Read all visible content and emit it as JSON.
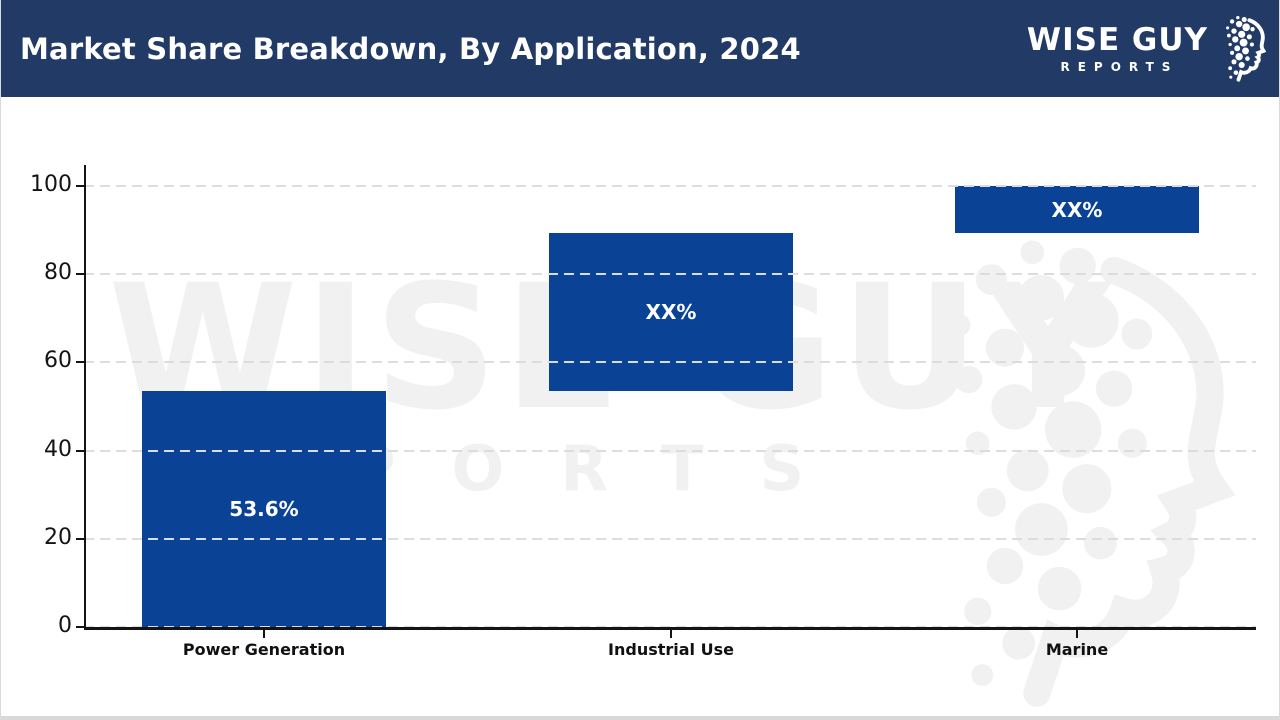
{
  "header": {
    "title": "Market Share Breakdown, By Application, 2024",
    "bg_color": "#213a66",
    "logo": {
      "line1": "WISE GUY",
      "line2": "REPORTS",
      "head_icon": "dotted-face-profile"
    }
  },
  "watermark": {
    "line1": "WISE GUY",
    "line2": "REPORTS",
    "head_icon": "dotted-face-profile",
    "color": "#f1f1f1"
  },
  "chart_data": {
    "type": "bar",
    "subtype": "waterfall-floating-bars",
    "title": "Market Share Breakdown, By Application, 2024",
    "categories": [
      "Power Generation",
      "Industrial Use",
      "Marine"
    ],
    "series": [
      {
        "name": "Power Generation",
        "start": 0,
        "end": 53.6,
        "label": "53.6%"
      },
      {
        "name": "Industrial Use",
        "start": 53.6,
        "end": 89.3,
        "label": "XX%"
      },
      {
        "name": "Marine",
        "start": 89.3,
        "end": 100,
        "label": "XX%"
      }
    ],
    "xlabel": "",
    "ylabel": "",
    "ylim": [
      0,
      105
    ],
    "yticks": [
      0,
      20,
      40,
      60,
      80,
      100
    ],
    "grid": "horizontal-dashed",
    "legend": "none",
    "bar_color": "#0a4296",
    "bar_label_color": "#ffffff",
    "axis_color": "#141414"
  }
}
